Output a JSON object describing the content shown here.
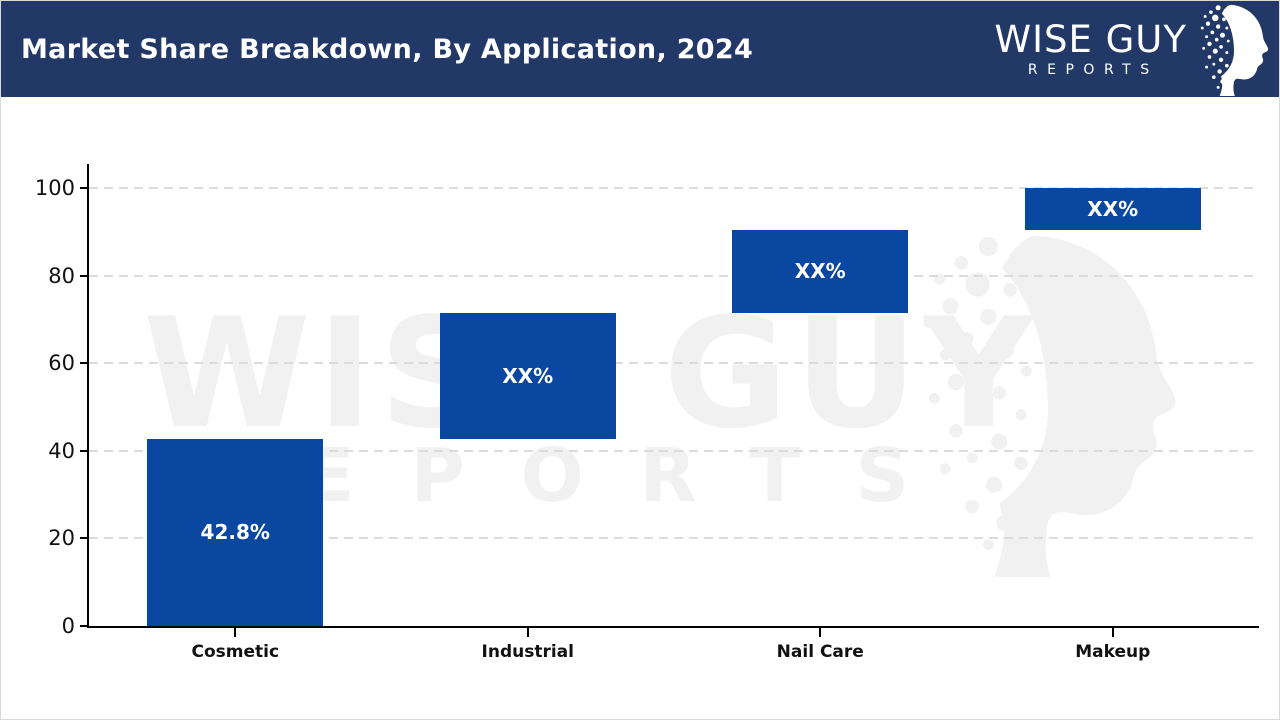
{
  "header": {
    "title": "Market Share Breakdown, By Application, 2024",
    "logo": {
      "line1": "WISE GUY",
      "line2": "REPORTS"
    }
  },
  "watermark": {
    "line1": "WISE GUY",
    "line2": "REPORTS"
  },
  "colors": {
    "header_bg": "#223968",
    "bar_blue": "#0a47a1",
    "gridline": "#dcdcdc",
    "watermark": "#f1f1f1",
    "page_bg": "#ffffff"
  },
  "chart_data": {
    "type": "bar",
    "subtype": "waterfall",
    "title": "Market Share Breakdown, By Application, 2024",
    "categories": [
      "Cosmetic",
      "Industrial",
      "Nail Care",
      "Makeup"
    ],
    "segments": [
      {
        "category": "Cosmetic",
        "start": 0,
        "end": 42.8,
        "label": "42.8%"
      },
      {
        "category": "Industrial",
        "start": 42.8,
        "end": 71.4,
        "label": "XX%"
      },
      {
        "category": "Nail Care",
        "start": 71.4,
        "end": 90.5,
        "label": "XX%"
      },
      {
        "category": "Makeup",
        "start": 90.5,
        "end": 100,
        "label": "XX%"
      }
    ],
    "ylim": [
      0,
      100
    ],
    "yticks": [
      0,
      20,
      40,
      60,
      80,
      100
    ],
    "xlabel": "",
    "ylabel": "",
    "grid": "horizontal-dashed",
    "legend": "none",
    "bar_color": "#0a47a1",
    "bar_label_color": "#ffffff"
  }
}
